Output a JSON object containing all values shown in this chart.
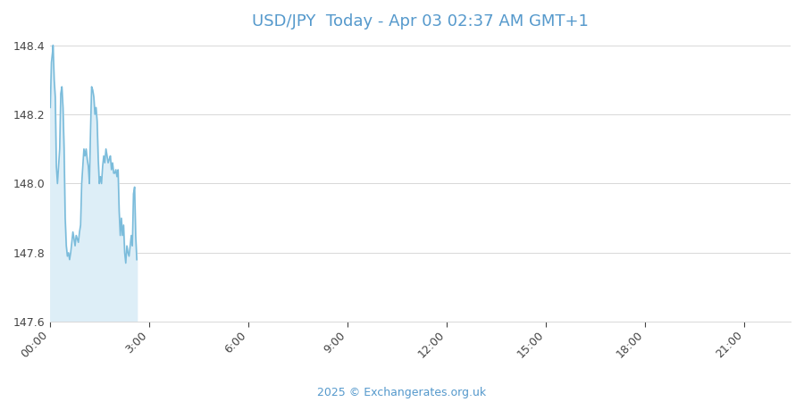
{
  "title": "USD/JPY  Today - Apr 03 02:37 AM GMT+1",
  "title_color": "#5599cc",
  "title_fontsize": 13,
  "xlim": [
    0,
    1344
  ],
  "ylim": [
    147.6,
    148.42
  ],
  "yticks": [
    147.6,
    147.8,
    148.0,
    148.2,
    148.4
  ],
  "xtick_positions": [
    0,
    180,
    360,
    540,
    720,
    900,
    1080,
    1260
  ],
  "xtick_labels": [
    "00:00",
    "3:00",
    "6:00",
    "9:00",
    "12:00",
    "15:00",
    "18:00",
    "21:00"
  ],
  "footer": "2025 © Exchangerates.org.uk",
  "footer_color": "#5599cc",
  "line_color": "#7bbcdb",
  "fill_color": "#ddeef7",
  "background_color": "#ffffff",
  "grid_color": "#d8d8d8",
  "time_data": [
    0,
    2,
    4,
    5,
    7,
    9,
    11,
    13,
    15,
    17,
    19,
    21,
    23,
    25,
    27,
    29,
    31,
    33,
    35,
    37,
    39,
    41,
    43,
    45,
    47,
    49,
    51,
    53,
    55,
    57,
    59,
    61,
    63,
    65,
    67,
    69,
    71,
    73,
    75,
    77,
    79,
    81,
    83,
    85,
    87,
    89,
    91,
    93,
    95,
    97,
    99,
    101,
    103,
    105,
    107,
    109,
    111,
    113,
    115,
    117,
    119,
    121,
    123,
    125,
    127,
    129,
    131,
    133,
    135,
    137,
    139,
    141,
    143,
    145,
    147,
    149,
    151,
    153,
    155,
    157
  ],
  "rate_data": [
    148.22,
    148.35,
    148.38,
    148.4,
    148.3,
    148.25,
    148.05,
    148.0,
    148.05,
    148.1,
    148.26,
    148.28,
    148.22,
    148.1,
    147.9,
    147.82,
    147.79,
    147.8,
    147.78,
    147.8,
    147.83,
    147.86,
    147.84,
    147.82,
    147.85,
    147.84,
    147.83,
    147.86,
    147.88,
    148.0,
    148.05,
    148.1,
    148.08,
    148.1,
    148.07,
    148.05,
    148.0,
    148.15,
    148.28,
    148.27,
    148.25,
    148.2,
    148.22,
    148.18,
    148.07,
    148.0,
    148.02,
    148.0,
    148.05,
    148.08,
    148.06,
    148.1,
    148.08,
    148.06,
    148.07,
    148.08,
    148.04,
    148.06,
    148.03,
    148.03,
    148.04,
    148.02,
    148.04,
    147.92,
    147.85,
    147.9,
    147.85,
    147.88,
    147.8,
    147.77,
    147.82,
    147.8,
    147.79,
    147.82,
    147.85,
    147.82,
    147.97,
    147.99,
    147.85,
    147.78
  ]
}
